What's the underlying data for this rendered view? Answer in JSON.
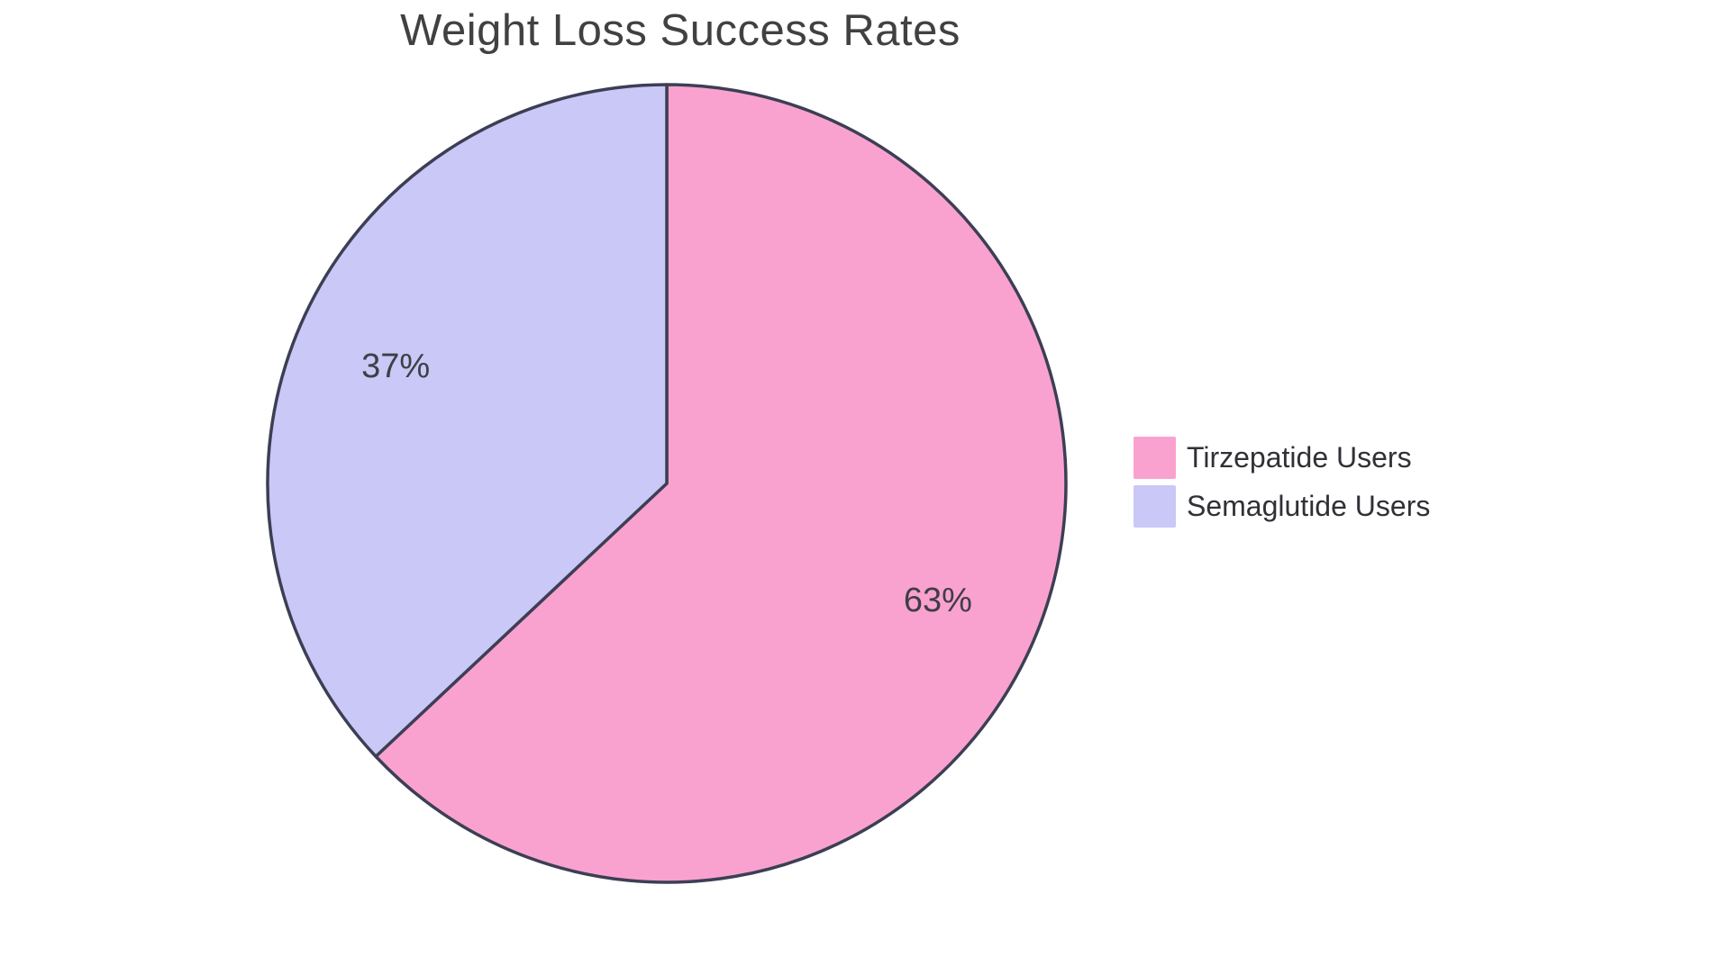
{
  "chart_data": {
    "type": "pie",
    "title": "Weight Loss Success Rates",
    "labels": [
      "Tirzepatide Users",
      "Semaglutide Users"
    ],
    "values": [
      63,
      37
    ],
    "percent_labels": [
      "63%",
      "37%"
    ],
    "colors": [
      "#FAA2CF",
      "#C9C8F7"
    ],
    "stroke_color": "#3C3F54",
    "percent_label_color": "#3E3E46",
    "title_color": "#414141",
    "background_color": "#FFFFFF",
    "legend_position": "right",
    "start_angle_deg": -90,
    "direction": "clockwise"
  },
  "legend": {
    "items": [
      {
        "label": "Tirzepatide Users",
        "color": "#FAA2CF"
      },
      {
        "label": "Semaglutide Users",
        "color": "#C9C8F7"
      }
    ]
  }
}
